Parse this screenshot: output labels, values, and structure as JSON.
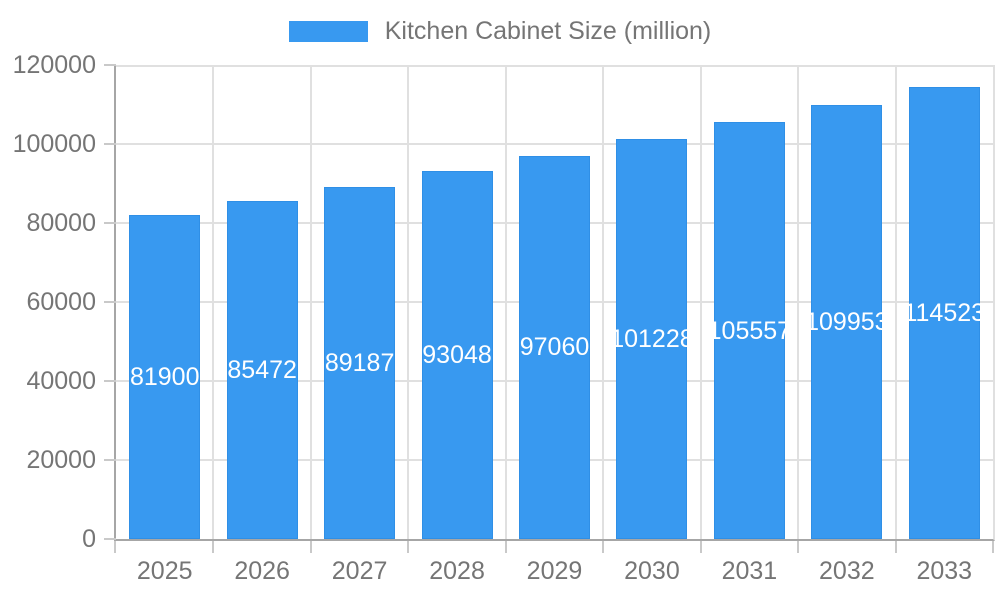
{
  "legend": {
    "label": "Kitchen Cabinet Size (million)"
  },
  "chart_data": {
    "type": "bar",
    "title": "Kitchen Cabinet Size (million)",
    "series_name": "Kitchen Cabinet Size (million)",
    "categories": [
      "2025",
      "2026",
      "2027",
      "2028",
      "2029",
      "2030",
      "2031",
      "2032",
      "2033"
    ],
    "values": [
      81900,
      85472,
      89187,
      93048,
      97060,
      101228,
      105557,
      109953,
      114523
    ],
    "xlabel": "",
    "ylabel": "",
    "ylim": [
      0,
      120000
    ],
    "yticks": [
      0,
      20000,
      40000,
      60000,
      80000,
      100000,
      120000
    ],
    "grid": true,
    "legend_position": "top",
    "bar_labels_visible": true,
    "colors": {
      "bar": "#3899f0",
      "bar_border": "#2f8fe6",
      "bar_label_text": "#ffffff",
      "axis_text": "#757575",
      "gridline": "#e0e0e0",
      "axis_line": "#a6a6a6",
      "tick": "#c9c9c9",
      "background": "#ffffff"
    }
  }
}
